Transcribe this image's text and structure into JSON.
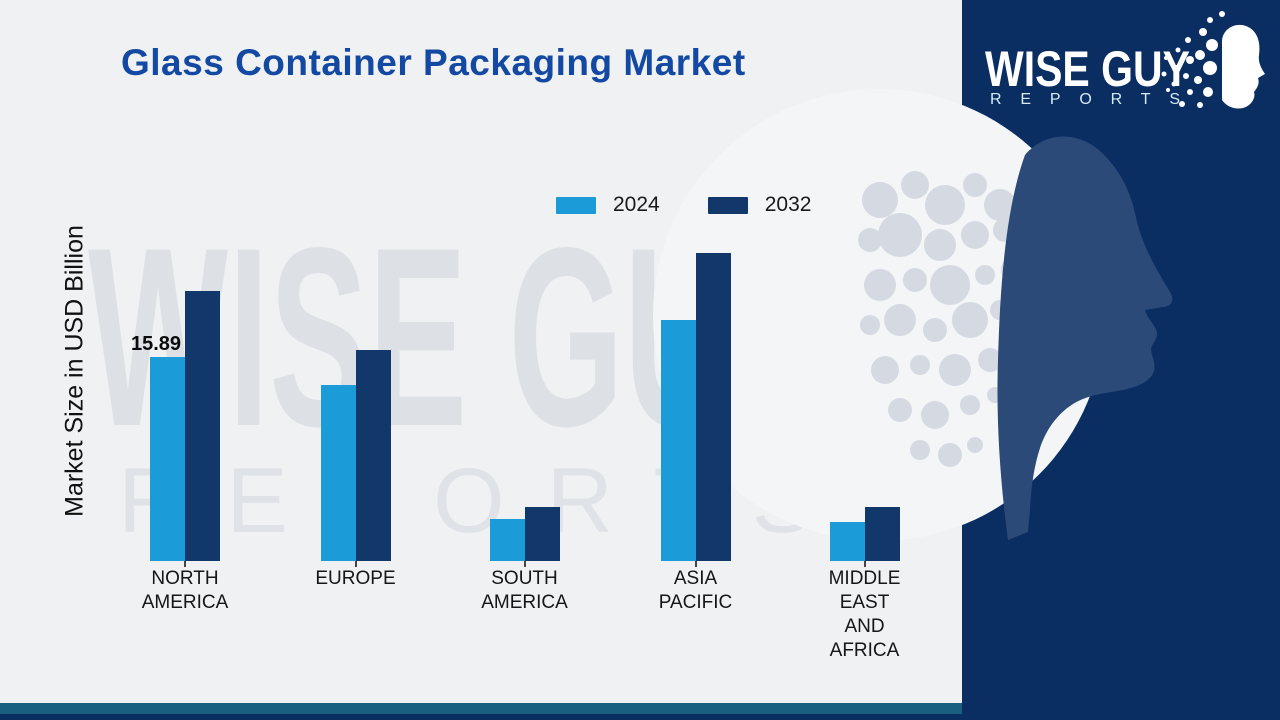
{
  "page": {
    "title": "Glass Container Packaging Market"
  },
  "brand": {
    "name_line": "WISE GUY",
    "sub_line": "REPORTS"
  },
  "watermark": {
    "line1": "WISE GUY",
    "line2": "REPORTS"
  },
  "chart_data": {
    "type": "bar",
    "title": "Glass Container Packaging Market",
    "xlabel": "",
    "ylabel": "Market Size in USD Billion",
    "categories": [
      "NORTH\nAMERICA",
      "EUROPE",
      "SOUTH\nAMERICA",
      "ASIA\nPACIFIC",
      "MIDDLE\nEAST\nAND\nAFRICA"
    ],
    "series": [
      {
        "name": "2024",
        "color": "#1b9cd8",
        "values": [
          15.89,
          13.7,
          3.3,
          18.8,
          3.0
        ]
      },
      {
        "name": "2032",
        "color": "#12386b",
        "values": [
          21.0,
          16.4,
          4.2,
          24.0,
          4.2
        ]
      }
    ],
    "value_labels": [
      {
        "series_index": 0,
        "category_index": 0,
        "text": "15.89"
      }
    ],
    "legend_position": "top-center",
    "grid": false,
    "ylim": [
      0,
      26
    ],
    "unit": "USD Billion"
  },
  "colors": {
    "series_2024": "#1b9cd8",
    "series_2032": "#12386b",
    "panel_navy": "#0a2d62",
    "teal_bar": "#1a5f80",
    "title_blue": "#1348a3",
    "face_silhouette": "#2b4a78",
    "watermark_gray": "#c9ced6",
    "dot_cluster_gray": "#cbd2dc"
  }
}
